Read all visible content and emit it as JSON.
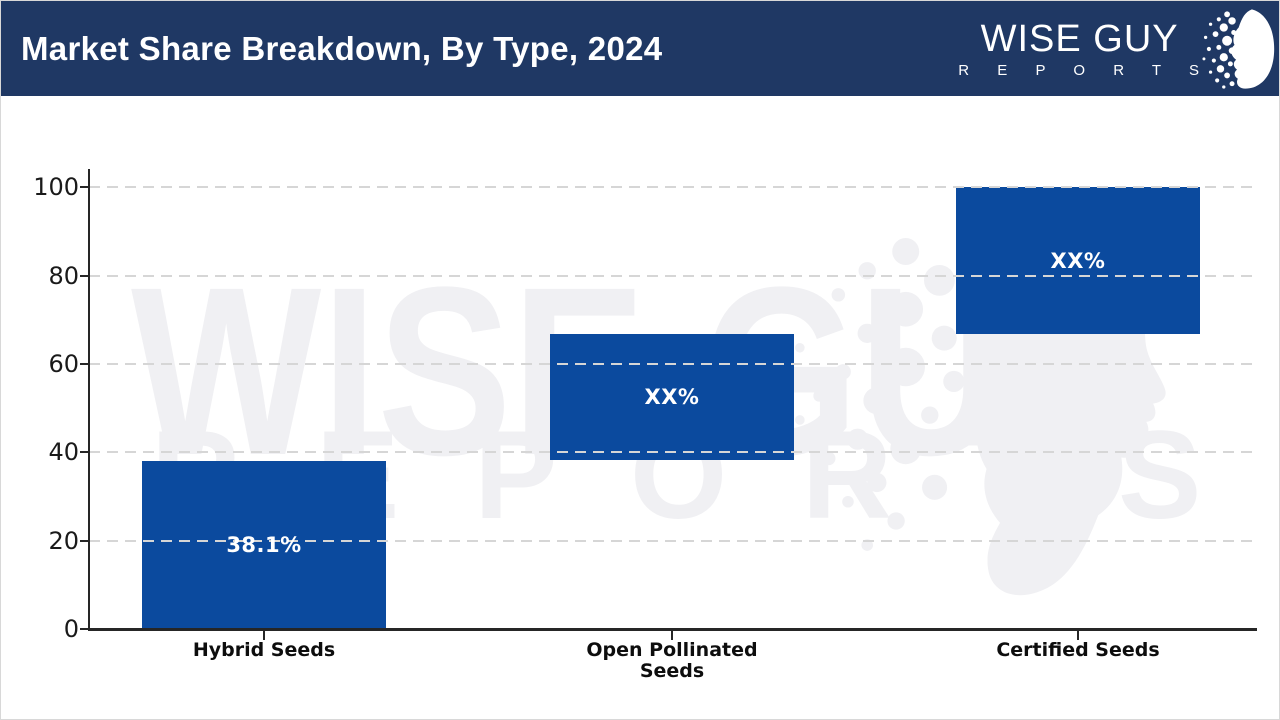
{
  "header": {
    "title": "Market Share Breakdown, By Type, 2024",
    "brand": {
      "line1": "WISE GUY",
      "line2": "R E P O R T S"
    }
  },
  "watermark": {
    "line1": "WISE GUY",
    "line2": "R E P O R T S"
  },
  "colors": {
    "header_bg": "#1F3864",
    "bar_blue": "#0B4A9E",
    "watermark_gray": "#F0F0F3",
    "grid_gray": "#D6D6D6",
    "axis_dark": "#262626"
  },
  "chart_data": {
    "type": "bar",
    "variant": "floating-waterfall",
    "title": "Market Share Breakdown, By Type, 2024",
    "xlabel": "",
    "ylabel": "",
    "categories": [
      {
        "label": "Hybrid Seeds",
        "lines": [
          "Hybrid Seeds"
        ]
      },
      {
        "label": "Open Pollinated Seeds",
        "lines": [
          "Open Pollinated",
          "Seeds"
        ]
      },
      {
        "label": "Certified Seeds",
        "lines": [
          "Certified Seeds"
        ]
      }
    ],
    "segments": [
      {
        "category": "Hybrid Seeds",
        "start": 0,
        "end": 38.1,
        "value_label": "38.1%"
      },
      {
        "category": "Open Pollinated Seeds",
        "start": 38.1,
        "end": 66.7,
        "value_label": "XX%"
      },
      {
        "category": "Certified Seeds",
        "start": 66.7,
        "end": 100,
        "value_label": "XX%"
      }
    ],
    "y_ticks": [
      0,
      20,
      40,
      60,
      80,
      100
    ],
    "ylim": [
      0,
      104
    ],
    "grid": true,
    "legend": false
  }
}
